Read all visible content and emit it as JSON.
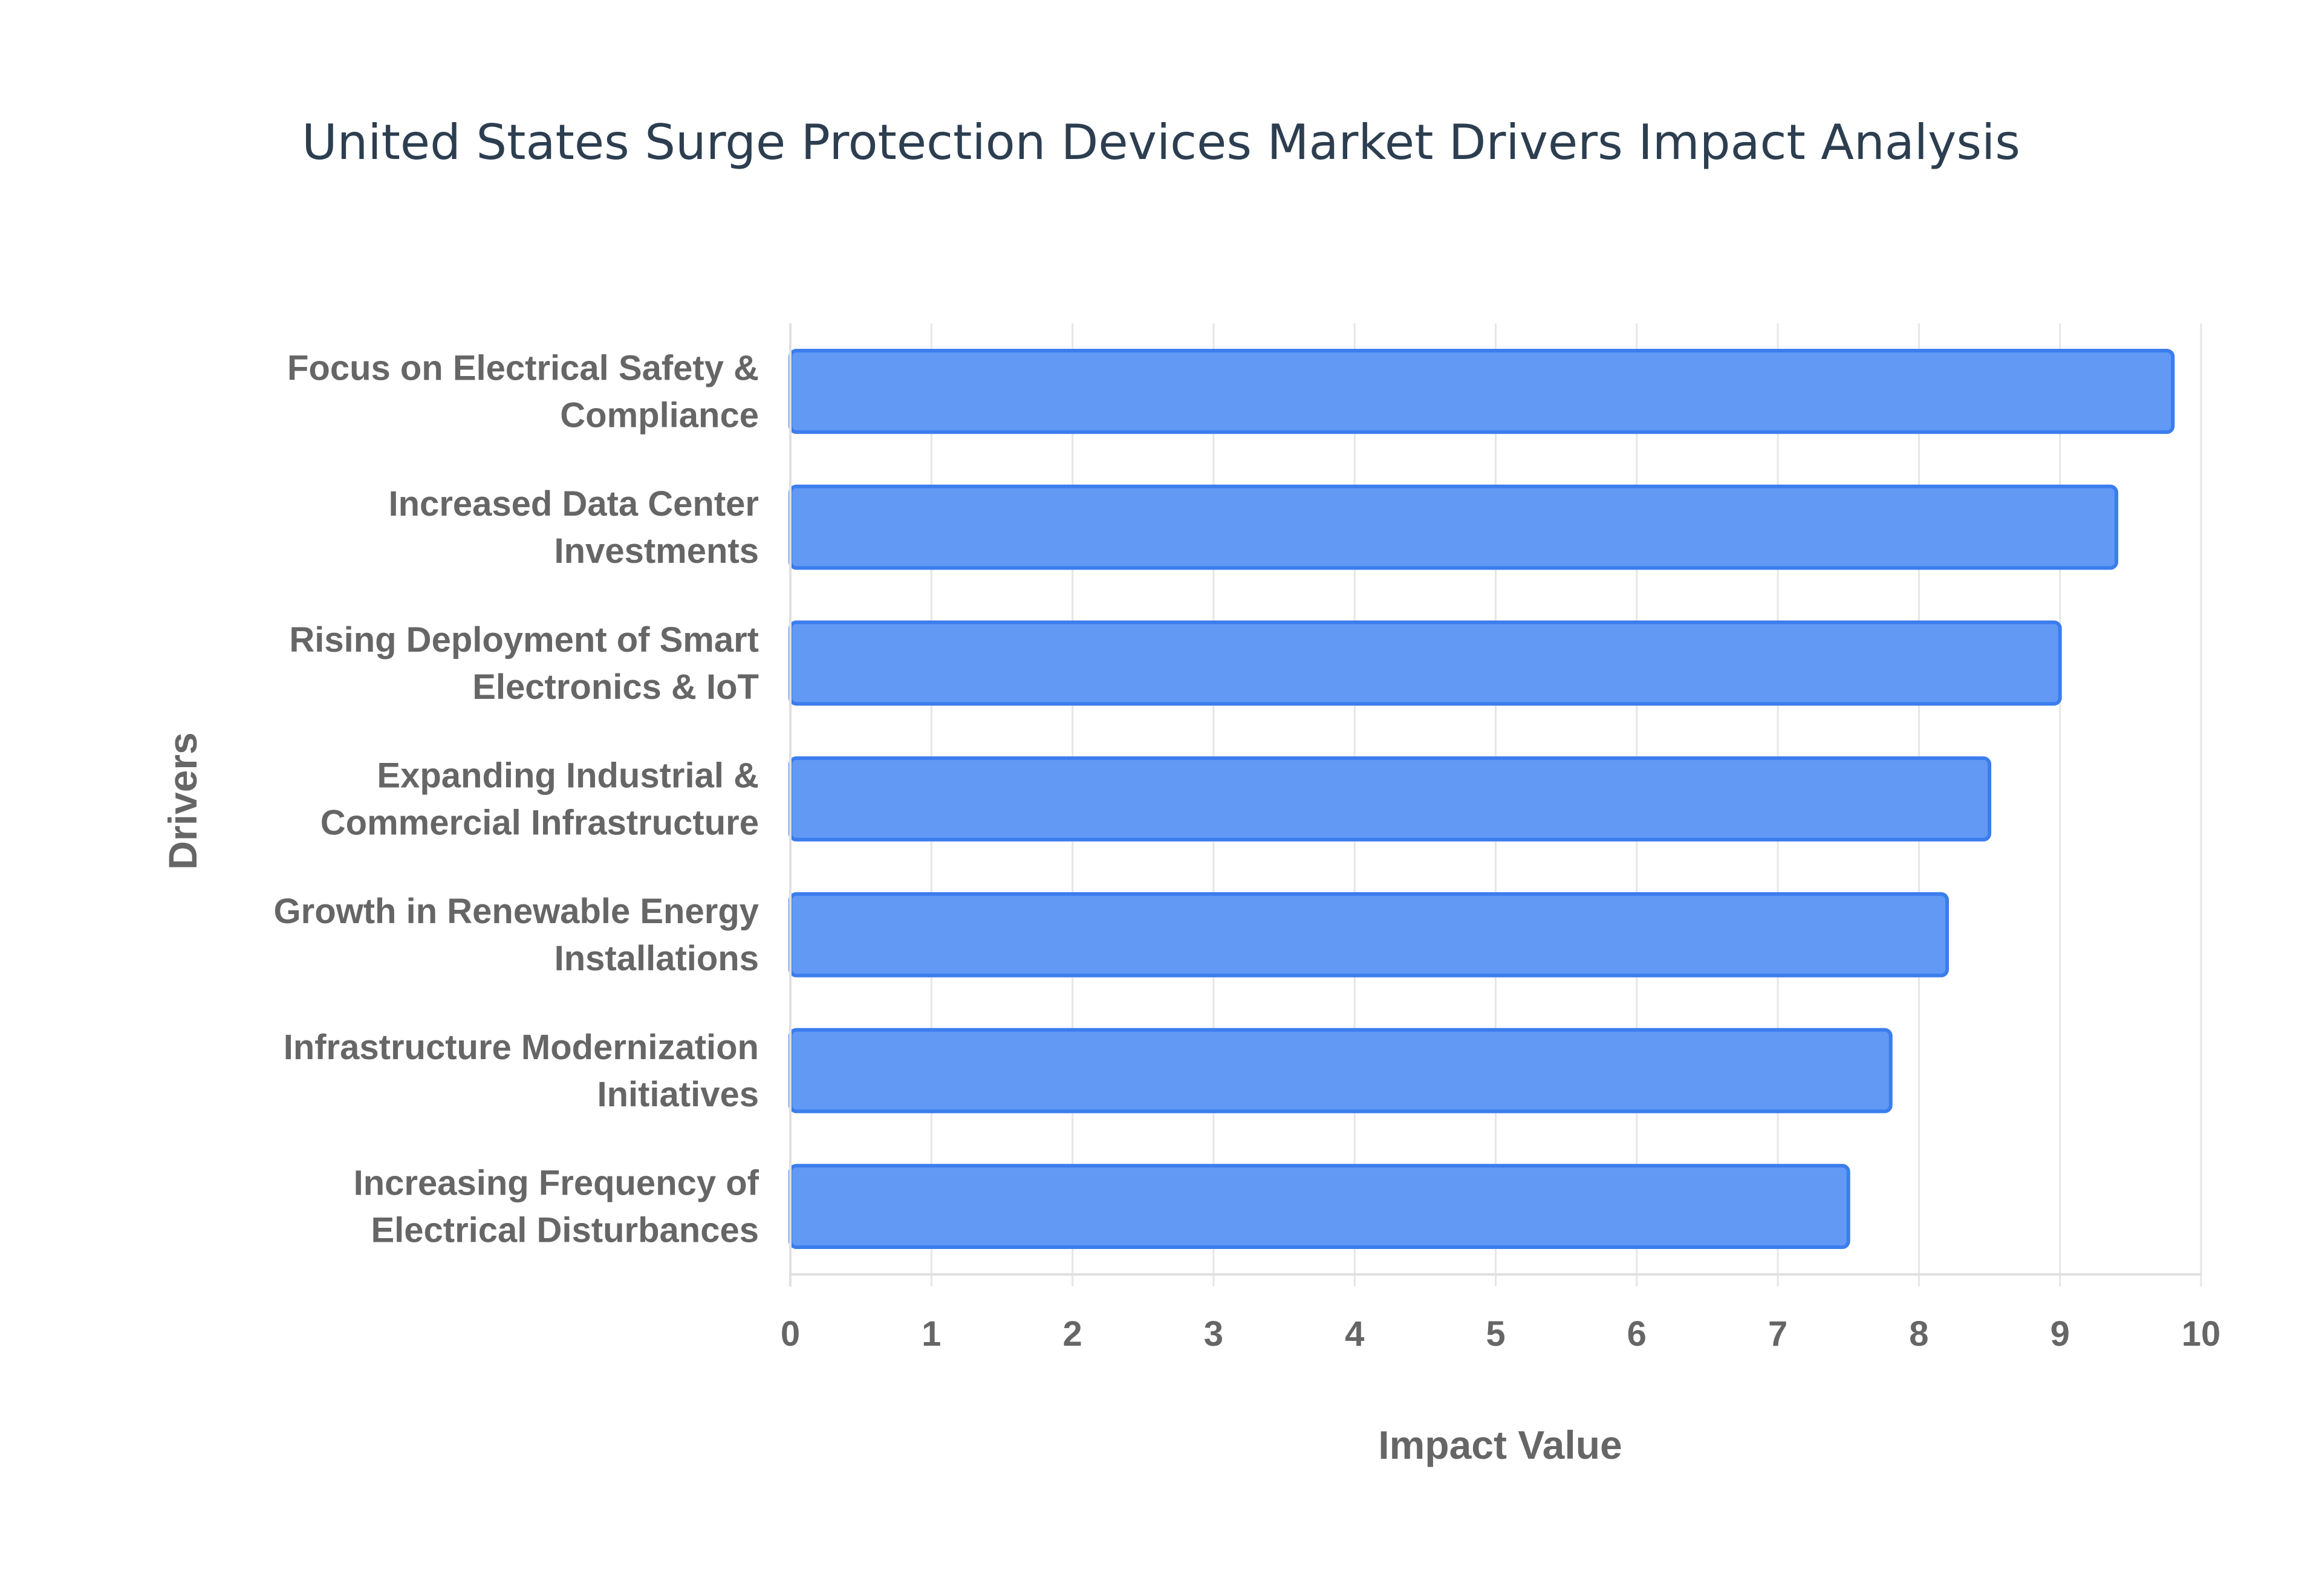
{
  "chart_data": {
    "type": "bar",
    "orientation": "horizontal",
    "title": "United States Surge Protection Devices Market Drivers Impact Analysis",
    "xlabel": "Impact Value",
    "ylabel": "Drivers",
    "xlim": [
      0,
      10
    ],
    "xticks": [
      "0",
      "1",
      "2",
      "3",
      "4",
      "5",
      "6",
      "7",
      "8",
      "9",
      "10"
    ],
    "grid": true,
    "legend": "none",
    "bar_color": "#6199f5",
    "bar_border_color": "#3b7ded",
    "categories": [
      [
        "Focus on Electrical Safety &",
        "Compliance"
      ],
      [
        "Increased Data Center",
        "Investments"
      ],
      [
        "Rising Deployment of Smart",
        "Electronics & IoT"
      ],
      [
        "Expanding Industrial &",
        "Commercial Infrastructure"
      ],
      [
        "Growth in Renewable Energy",
        "Installations"
      ],
      [
        "Infrastructure Modernization",
        "Initiatives"
      ],
      [
        "Increasing Frequency of",
        "Electrical Disturbances"
      ]
    ],
    "values": [
      9.8,
      9.4,
      9.0,
      8.5,
      8.2,
      7.8,
      7.5
    ]
  }
}
